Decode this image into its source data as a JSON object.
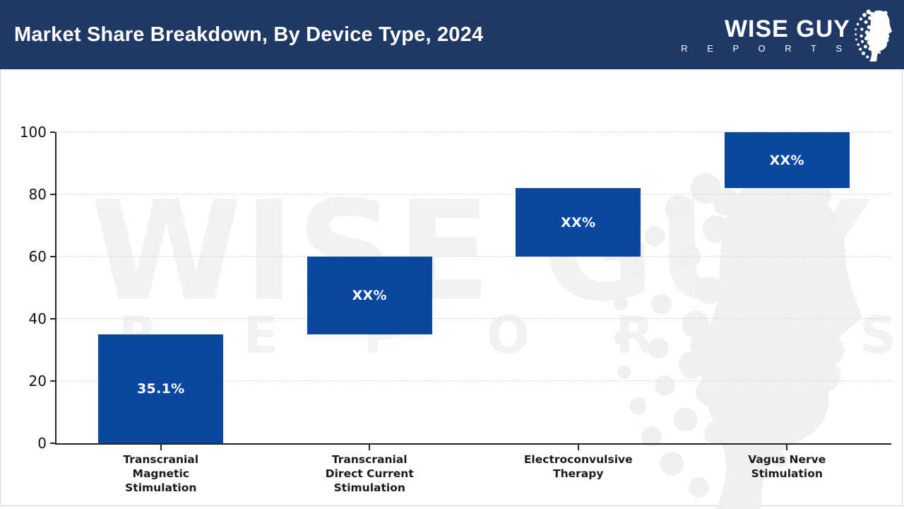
{
  "header": {
    "title": "Market Share Breakdown, By Device Type, 2024",
    "brand": {
      "name": "WISE GUY",
      "reports": "R E P O R T S",
      "face_icon": "dotted-head-profile"
    }
  },
  "watermark": {
    "big_text": "WISE GUY",
    "reports_text": "R E P O R T S",
    "face_icon": "dotted-head-profile",
    "color": "#f2f2f2"
  },
  "chart_data": {
    "type": "bar",
    "subtype": "floating-waterfall",
    "title": "Market Share Breakdown, By Device Type, 2024",
    "categories": [
      "Transcranial\nMagnetic\nStimulation",
      "Transcranial\nDirect Current\nStimulation",
      "Electroconvulsive\nTherapy",
      "Vagus Nerve\nStimulation"
    ],
    "series": [
      {
        "name": "Market share (%)",
        "segments": [
          {
            "start": 0,
            "end": 35.1,
            "label": "35.1%"
          },
          {
            "start": 35.1,
            "end": 60,
            "label": "XX%"
          },
          {
            "start": 60,
            "end": 82,
            "label": "XX%"
          },
          {
            "start": 82,
            "end": 100,
            "label": "XX%"
          }
        ]
      }
    ],
    "ylim": [
      0,
      100
    ],
    "yticks": [
      0,
      20,
      40,
      60,
      80,
      100
    ],
    "grid": "horizontal-dashed",
    "legend": "none",
    "bar_color": "#0a479e",
    "bar_label_color": "#ffffff",
    "header_color": "#1f3864",
    "bar_width_fraction": 0.6
  }
}
